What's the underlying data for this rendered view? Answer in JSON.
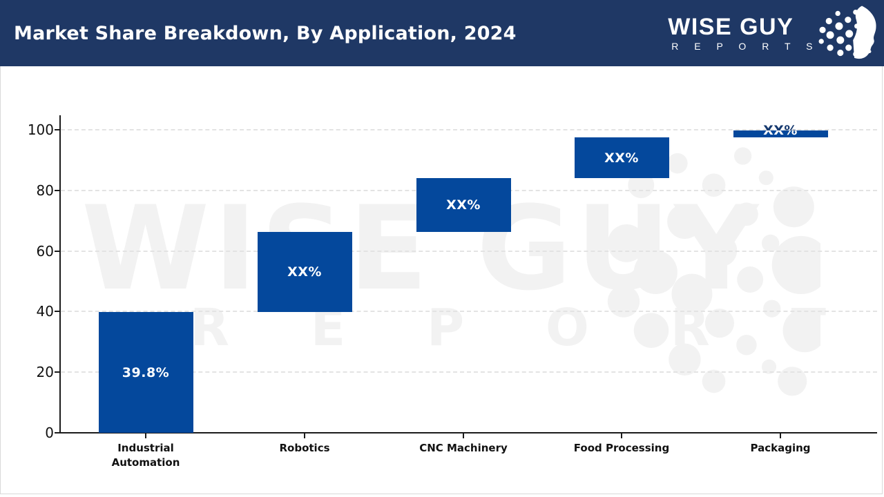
{
  "header": {
    "title": "Market Share Breakdown, By Application, 2024",
    "logo": {
      "line1": "WISE GUY",
      "line2": "R E P O R T S"
    }
  },
  "watermark": {
    "line1": "WISE GUY",
    "line2": "R E P O R T S"
  },
  "colors": {
    "header_bg": "#1F3865",
    "title_text": "#FFFFFF",
    "bar_blue": "#04489C",
    "grid_line": "#E3E3E3",
    "axis_line": "#1A1A1A",
    "tick_text": "#111111",
    "bar_label_white": "#FFFFFF",
    "bar_label_navy": "#16396F",
    "watermark_gray": "#F2F2F2",
    "frame_border": "#D9D9D9"
  },
  "chart_data": {
    "type": "bar",
    "subtype": "waterfall-cumulative",
    "title": "Market Share Breakdown, By Application, 2024",
    "xlabel": "",
    "ylabel": "",
    "categories": [
      "Industrial Automation",
      "Robotics",
      "CNC Machinery",
      "Food Processing",
      "Packaging"
    ],
    "segments": [
      {
        "category": "Industrial Automation",
        "start": 0,
        "end": 39.8,
        "value_label": "39.8%",
        "label_style": "inside-white"
      },
      {
        "category": "Robotics",
        "start": 39.8,
        "end": 66.3,
        "value_label": "XX%",
        "label_style": "inside-white"
      },
      {
        "category": "CNC Machinery",
        "start": 66.3,
        "end": 84.0,
        "value_label": "XX%",
        "label_style": "inside-white"
      },
      {
        "category": "Food Processing",
        "start": 84.0,
        "end": 97.4,
        "value_label": "XX%",
        "label_style": "inside-white"
      },
      {
        "category": "Packaging",
        "start": 97.4,
        "end": 99.8,
        "value_label": "XX%",
        "label_style": "straddle-top-navy"
      }
    ],
    "yticks": [
      0,
      20,
      40,
      60,
      80,
      100
    ],
    "ylim": [
      0,
      105
    ],
    "grid": "horizontal-dashed",
    "legend": "none"
  }
}
